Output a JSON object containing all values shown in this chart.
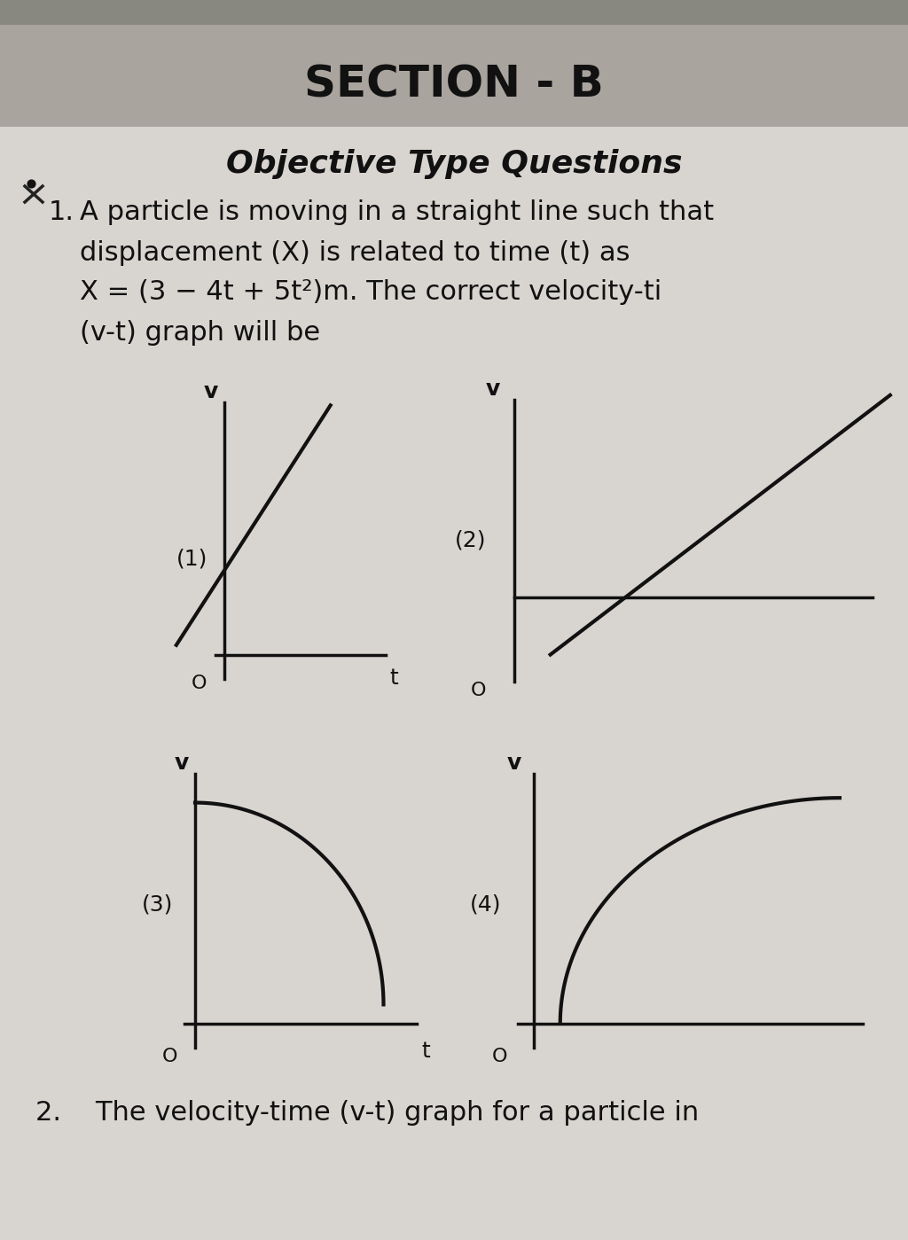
{
  "bg_color": "#d8d4cf",
  "page_color": "#ede9e3",
  "section_title": "SECTION - B",
  "section_bg": "#aaa49e",
  "subtitle": "Objective Type Questions",
  "q1_lines": [
    "A particle is moving in a straight line such that",
    "displacement (X) is related to time (t) as",
    "X = (3 − 4t + 5t²)m. The correct velocity-ti",
    "(v-t) graph will be"
  ],
  "bottom_text": "2.    The velocity-time (v-t) graph for a particle in",
  "text_color": "#111111",
  "line_color": "#111111",
  "line_width": 2.5,
  "top_strip_color": "#888880"
}
